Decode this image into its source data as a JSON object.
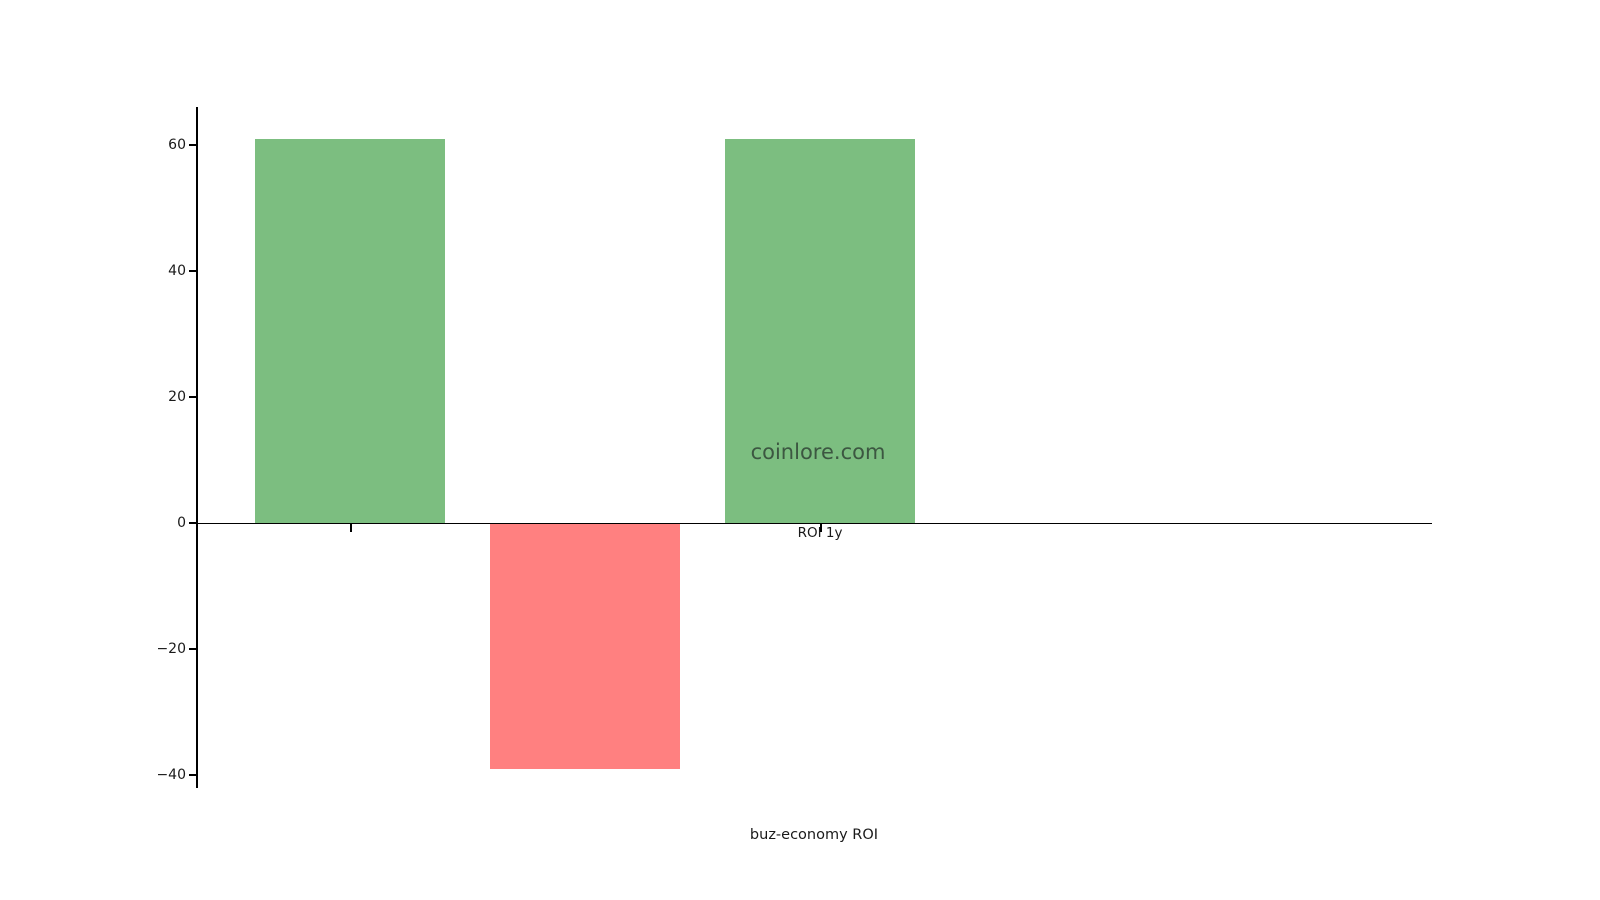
{
  "watermark": "coinlore.com",
  "chart_data": {
    "type": "bar",
    "title": "",
    "xlabel": "buz-economy ROI",
    "ylabel": "",
    "categories": [
      "",
      "",
      "ROI 1y"
    ],
    "values": [
      61,
      -39,
      61
    ],
    "series": [
      {
        "name": "buz-economy ROI",
        "values": [
          61,
          -39,
          61
        ]
      }
    ],
    "bar_colors": [
      "#7cbe80",
      "#ff8080",
      "#7cbe80"
    ],
    "positive_color": "#7cbe80",
    "negative_color": "#ff8080",
    "yticks": [
      {
        "label": "60",
        "value": 60
      },
      {
        "label": "40",
        "value": 40
      },
      {
        "label": "20",
        "value": 20
      },
      {
        "label": "0",
        "value": 0
      },
      {
        "label": "−20",
        "value": -20
      },
      {
        "label": "−40",
        "value": -40
      }
    ],
    "xticks_visible": [
      0,
      2
    ],
    "ylim": [
      -42,
      66
    ],
    "grid": false,
    "legend": "none",
    "background": "#ffffff",
    "axis_color": "#000000",
    "tick_label_color": "#1a1a1a",
    "watermark": "coinlore.com",
    "watermark_color": "#3c5741"
  }
}
